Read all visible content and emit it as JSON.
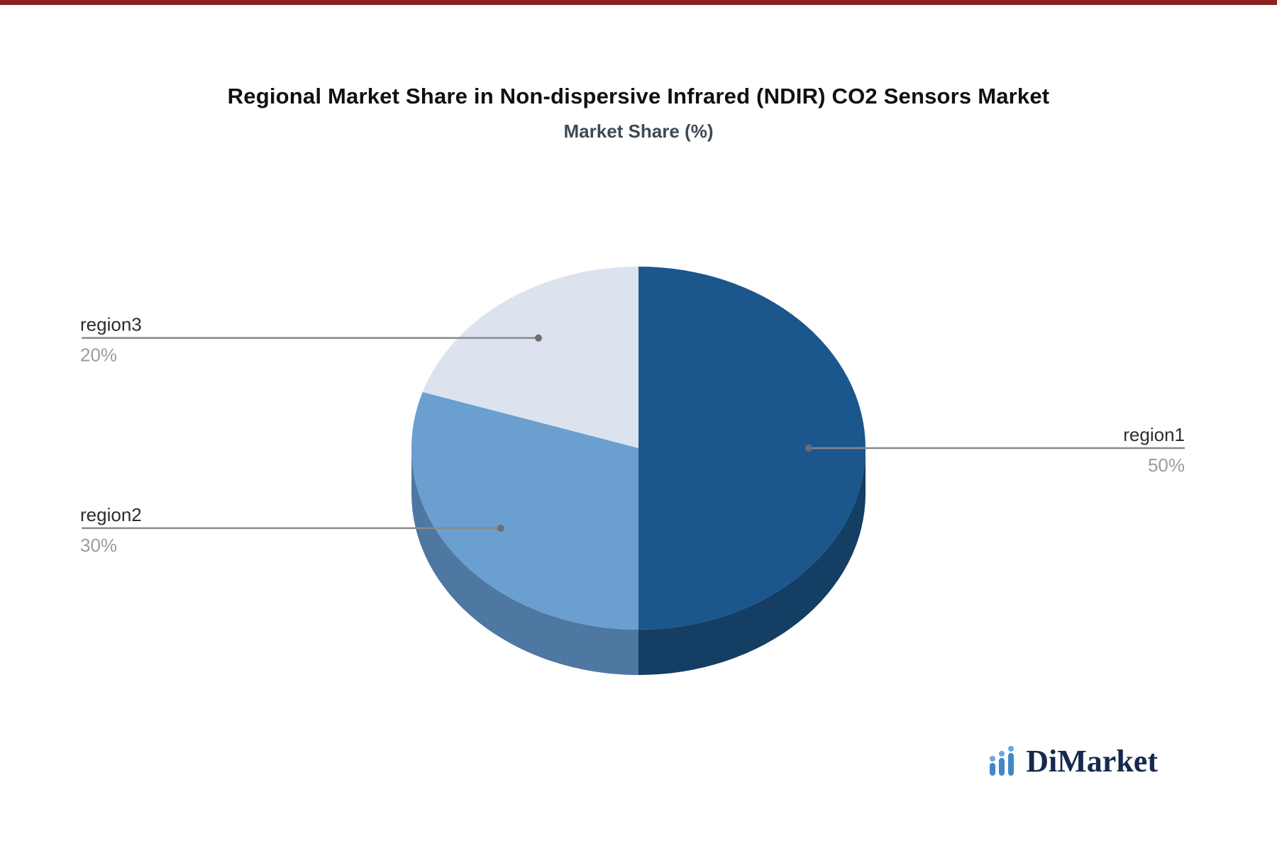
{
  "page": {
    "background": "#ffffff",
    "top_bar_color": "#8B2220"
  },
  "header": {
    "title": "Regional Market Share in Non-dispersive Infrared (NDIR) CO2 Sensors Market",
    "subtitle": "Market Share (%)"
  },
  "chart_data": {
    "type": "pie",
    "title": "Regional Market Share in Non-dispersive Infrared (NDIR) CO2 Sensors Market",
    "subtitle": "Market Share (%)",
    "unit": "%",
    "start_angle_deg": 0,
    "clockwise": true,
    "effect_3d": true,
    "legend_position": "none",
    "categories": [
      "region1",
      "region2",
      "region3"
    ],
    "values": [
      50,
      30,
      20
    ],
    "series": [
      {
        "name": "region1",
        "value": 50,
        "display": "50%",
        "color": "#1B568C",
        "side_color": "#143E63",
        "label_side": "right"
      },
      {
        "name": "region2",
        "value": 30,
        "display": "30%",
        "color": "#6A9FD0",
        "side_color": "#4E77A2",
        "label_side": "left"
      },
      {
        "name": "region3",
        "value": 20,
        "display": "20%",
        "color": "#DCE3EF",
        "side_color": "",
        "label_side": "left"
      }
    ],
    "label_style": {
      "name_color": "#2E2E2E",
      "value_color": "#9C9C9C",
      "line_color": "#8A8A8A",
      "dot_color": "#6E6E6E"
    }
  },
  "branding": {
    "logo_text": "DiMarket",
    "logo_color": "#16294E",
    "icon": "bar-chart-icon",
    "icon_bar_color": "#4287C8",
    "icon_dot_color": "#6EA6DC"
  }
}
